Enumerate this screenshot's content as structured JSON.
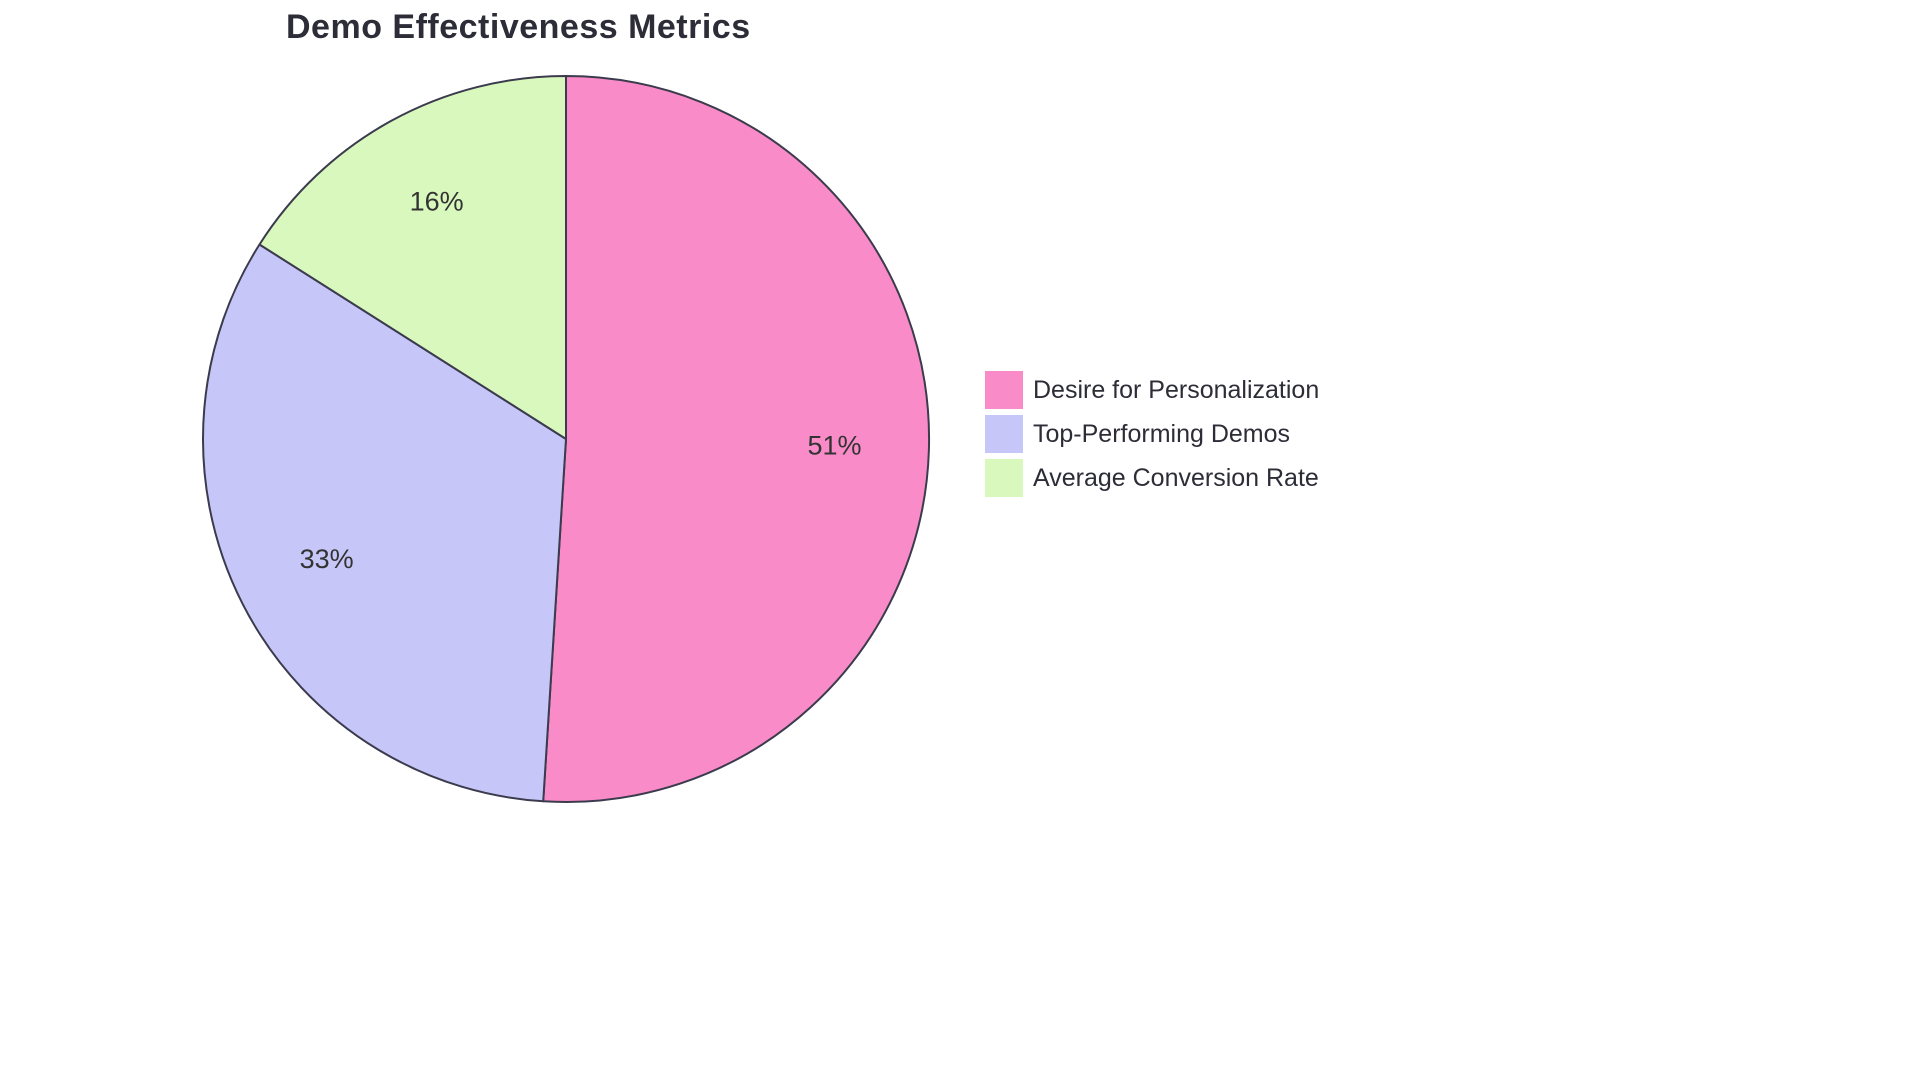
{
  "chart_data": {
    "type": "pie",
    "title": "Demo Effectiveness Metrics",
    "labels": [
      "Desire for Personalization",
      "Top-Performing Demos",
      "Average Conversion Rate"
    ],
    "values": [
      51,
      33,
      16
    ],
    "pct_labels": [
      "51%",
      "33%",
      "16%"
    ],
    "colors": [
      "#F98CC8",
      "#C6C7F8",
      "#D9F8BE"
    ],
    "stroke_color": "#3B3B4D",
    "label_color": "#333333",
    "title_color": "#2D2D38",
    "legend_position": "right",
    "start_angle_deg": 0,
    "direction": "clockwise",
    "background": "#FFFFFF"
  }
}
